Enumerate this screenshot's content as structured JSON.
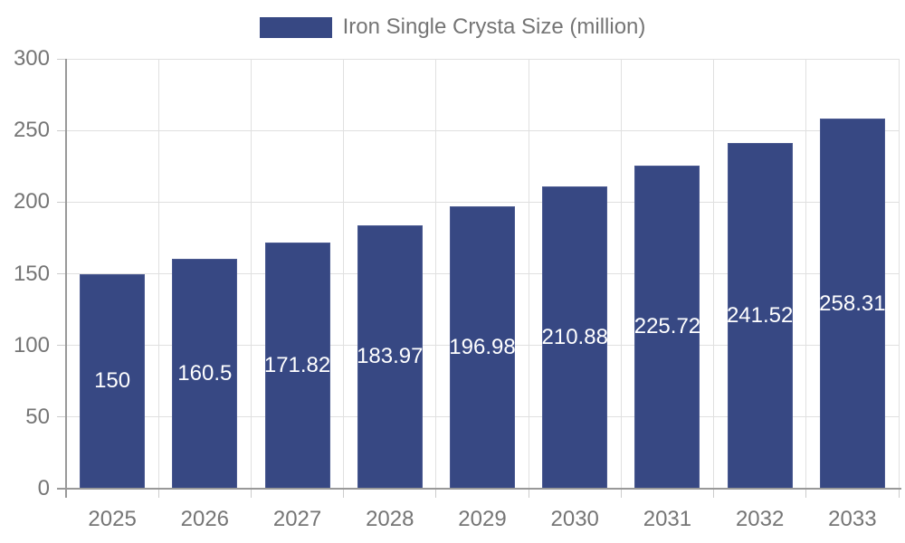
{
  "chart_data": {
    "type": "bar",
    "series_name": "Iron Single Crysta Size (million)",
    "categories": [
      "2025",
      "2026",
      "2027",
      "2028",
      "2029",
      "2030",
      "2031",
      "2032",
      "2033"
    ],
    "values": [
      150,
      160.5,
      171.82,
      183.97,
      196.98,
      210.88,
      225.72,
      241.52,
      258.31
    ],
    "ylim": [
      0,
      300
    ],
    "yticks": [
      0,
      50,
      100,
      150,
      200,
      250,
      300
    ],
    "grid": true,
    "legend_position": "top-center",
    "value_label_position": "inside-center",
    "colors": {
      "bar": "#374883",
      "bar_border": "#4a5990",
      "axis_line": "#999999",
      "grid_line": "#e0e0e0",
      "tick_line": "#cccccc",
      "text": "#757575",
      "value_label": "#ffffff",
      "background": "#ffffff"
    }
  }
}
